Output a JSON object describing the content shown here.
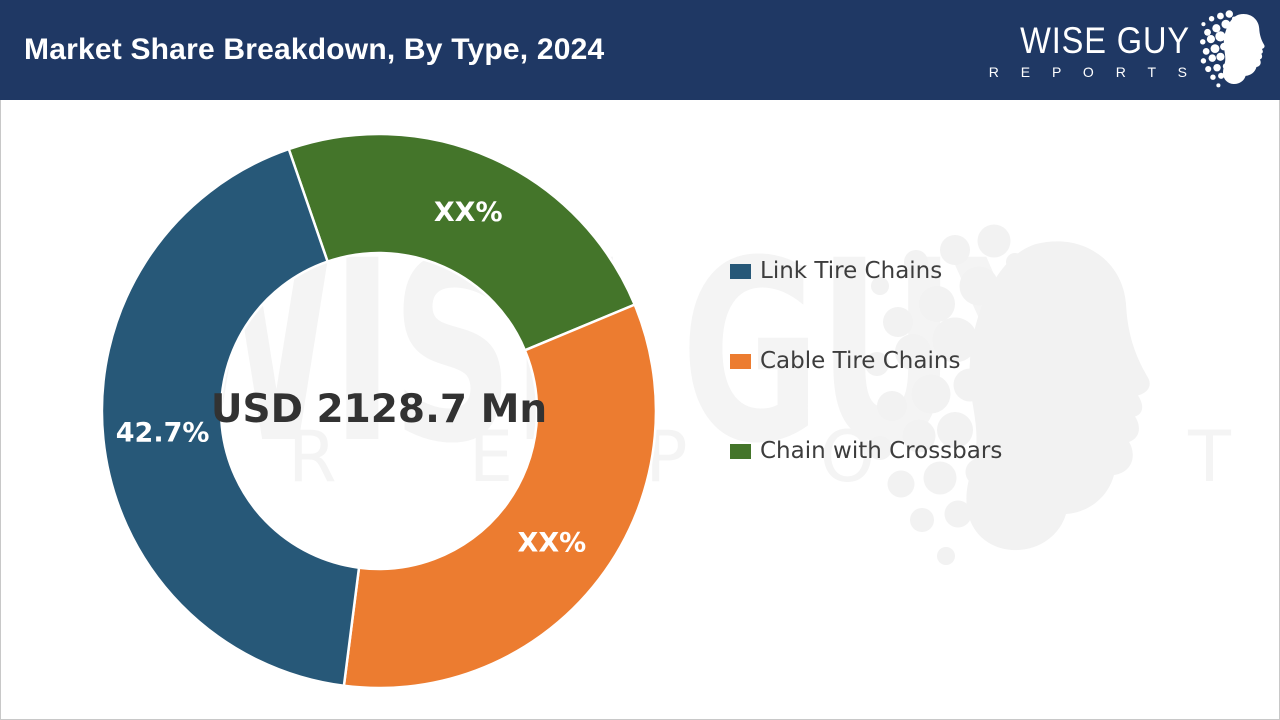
{
  "header": {
    "title": "Market Share Breakdown, By Type, 2024",
    "logo": {
      "line1": "WISE GUY",
      "line2": "R E P O R T S"
    },
    "bg_color": "#1f3864"
  },
  "watermark": {
    "line1": "WISE GUY",
    "line2": "R E P O R T S"
  },
  "chart_data": {
    "type": "pie",
    "subtype": "donut",
    "title": "Market Share Breakdown, By Type, 2024",
    "center_label": "USD 2128.7 Mn",
    "start_angle_deg": -19,
    "inner_radius_ratio": 0.57,
    "legend_position": "right",
    "segments_clockwise": [
      {
        "name": "Chain with Crossbars",
        "value_pct": 24.0,
        "display_label": "XX%",
        "color": "#44752a"
      },
      {
        "name": "Cable Tire Chains",
        "value_pct": 33.3,
        "display_label": "XX%",
        "color": "#ec7c30"
      },
      {
        "name": "Link Tire Chains",
        "value_pct": 42.7,
        "display_label": "42.7%",
        "color": "#275878"
      }
    ],
    "legend": [
      {
        "label": "Link Tire Chains",
        "color": "#275878"
      },
      {
        "label": "Cable Tire Chains",
        "color": "#ec7c30"
      },
      {
        "label": "Chain with Crossbars",
        "color": "#44752a"
      }
    ]
  }
}
